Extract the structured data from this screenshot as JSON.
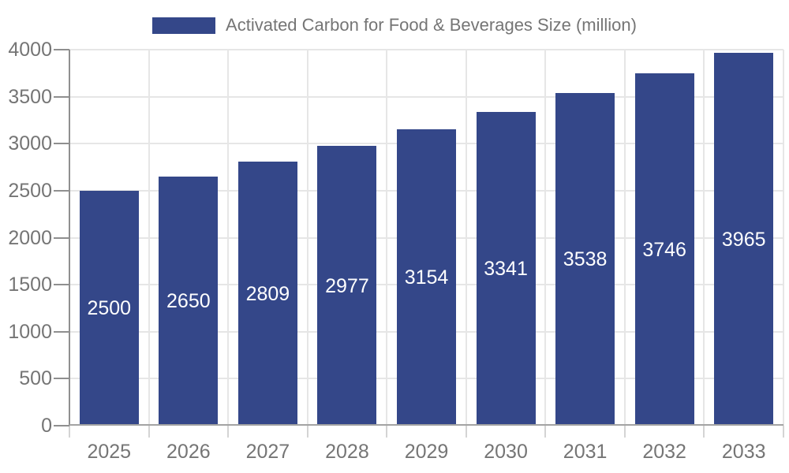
{
  "chart_data": {
    "type": "bar",
    "title": "Activated Carbon for Food & Beverages Size (million)",
    "legend_entries": [
      "Activated Carbon for Food & Beverages Size (million)"
    ],
    "legend_position": "top-center",
    "categories": [
      "2025",
      "2026",
      "2027",
      "2028",
      "2029",
      "2030",
      "2031",
      "2032",
      "2033"
    ],
    "values": [
      2500,
      2650,
      2809,
      2977,
      3154,
      3341,
      3538,
      3746,
      3965
    ],
    "value_labels": [
      "2500",
      "2650",
      "2809",
      "2977",
      "3154",
      "3341",
      "3538",
      "3746",
      "3965"
    ],
    "value_label_placement": "inside-center",
    "xlabel": "",
    "ylabel": "",
    "ylim": [
      0,
      4000
    ],
    "yticks": [
      0,
      500,
      1000,
      1500,
      2000,
      2500,
      3000,
      3500,
      4000
    ],
    "grid": true,
    "colors": {
      "bar_fill": "#344789",
      "value_label_text": "#ffffff",
      "tick_label_text": "#757575",
      "legend_text": "#757575",
      "gridline": "#e6e6e6",
      "y_axis_line": "#8f8f8f",
      "x_axis_line": "#a3a3a3",
      "x_tickmark": "#d4d4d4",
      "background": "#ffffff"
    }
  }
}
